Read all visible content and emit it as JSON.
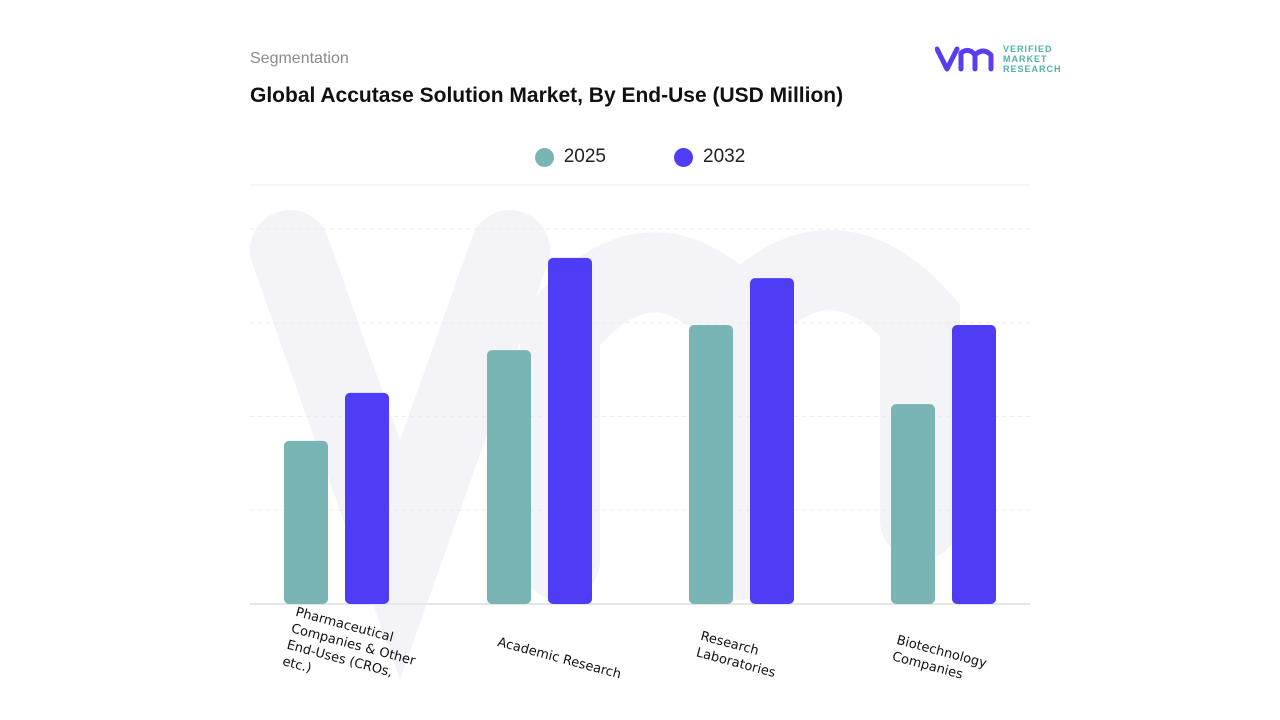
{
  "header": {
    "segment": "Segmentation",
    "title": "Global Accutase Solution Market, By End-Use (USD Million)"
  },
  "logo": {
    "line1": "VERIFIED",
    "line2": "MARKET",
    "line3": "RESEARCH"
  },
  "chart_data": {
    "type": "bar",
    "title": "Global Accutase Solution Market, By End-Use (USD Million)",
    "categories": [
      "Pharmaceutical Companies & Other End-Uses (CROs, etc.)",
      "Academic Research",
      "Research Laboratories",
      "Biotechnology Companies"
    ],
    "series": [
      {
        "name": "2025",
        "color": "#7ab5b5",
        "values": [
          43.5,
          67.7,
          74.4,
          53.3
        ]
      },
      {
        "name": "2032",
        "color": "#4f3df5",
        "values": [
          56.3,
          92.3,
          86.9,
          74.4
        ]
      }
    ],
    "ylim": [
      0,
      100
    ],
    "grid": true,
    "legend": "top-center",
    "y_tick_labels_shown": false
  }
}
